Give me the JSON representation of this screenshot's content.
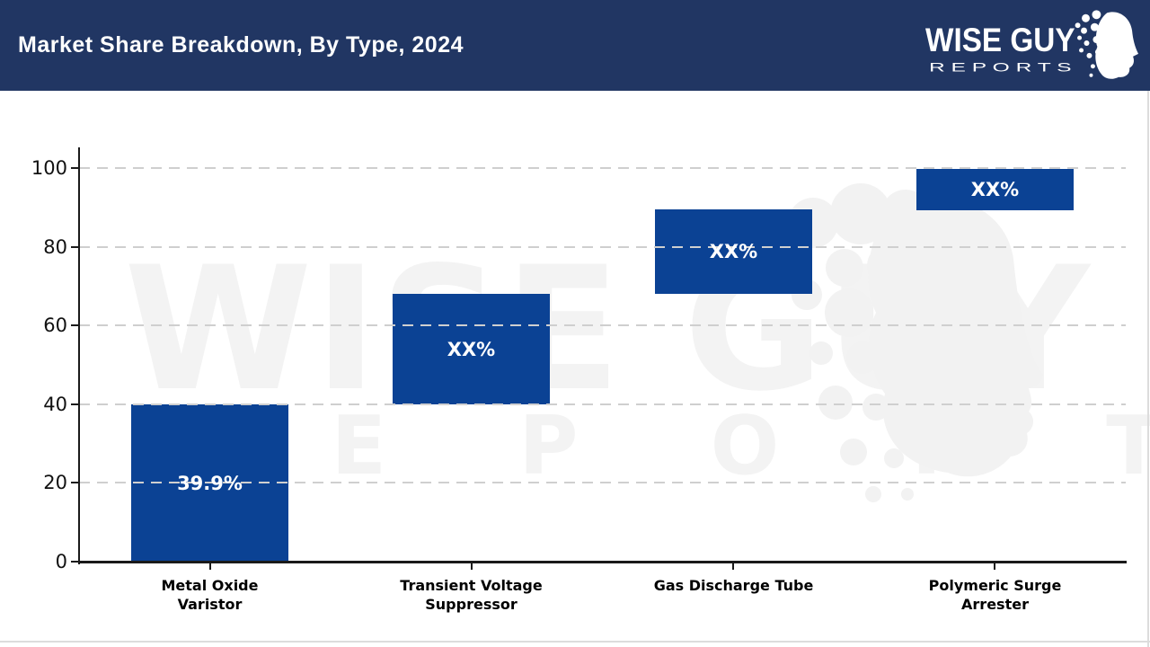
{
  "header": {
    "title": "Market Share Breakdown, By Type, 2024",
    "background_color": "#213663",
    "logo": {
      "wordmark": "WISE GUY",
      "subtext": "R E P O R T S"
    }
  },
  "watermark": {
    "wordmark": "WISE GUY",
    "subtext": "R E P O R T S"
  },
  "chart_data": {
    "type": "bar",
    "subtype": "floating-waterfall",
    "title": "Market Share Breakdown, By Type, 2024",
    "unit": "%",
    "categories": [
      [
        "Metal Oxide",
        "Varistor"
      ],
      [
        "Transient Voltage",
        "Suppressor"
      ],
      [
        "Gas Discharge Tube"
      ],
      [
        "Polymeric Surge",
        "Arrester"
      ]
    ],
    "series": [
      {
        "name": "Metal Oxide Varistor",
        "start": 0,
        "end": 39.9,
        "label": "39.9%"
      },
      {
        "name": "Transient Voltage Suppressor",
        "start": 39.9,
        "end": 68,
        "label": "XX%"
      },
      {
        "name": "Gas Discharge Tube",
        "start": 68,
        "end": 89.4,
        "label": "XX%"
      },
      {
        "name": "Polymeric Surge Arrester",
        "start": 89.4,
        "end": 99.8,
        "label": "XX%"
      }
    ],
    "ylim": [
      0,
      100
    ],
    "yticks": [
      0,
      20,
      40,
      60,
      80,
      100
    ],
    "grid": {
      "horizontal": true,
      "style": "dashed",
      "color": "#cfcfcf",
      "above_bars": true
    },
    "bar_color": "#0b4294",
    "bar_label_color": "#ffffff",
    "axis_color": "#1a1a1a",
    "legend": "none"
  }
}
